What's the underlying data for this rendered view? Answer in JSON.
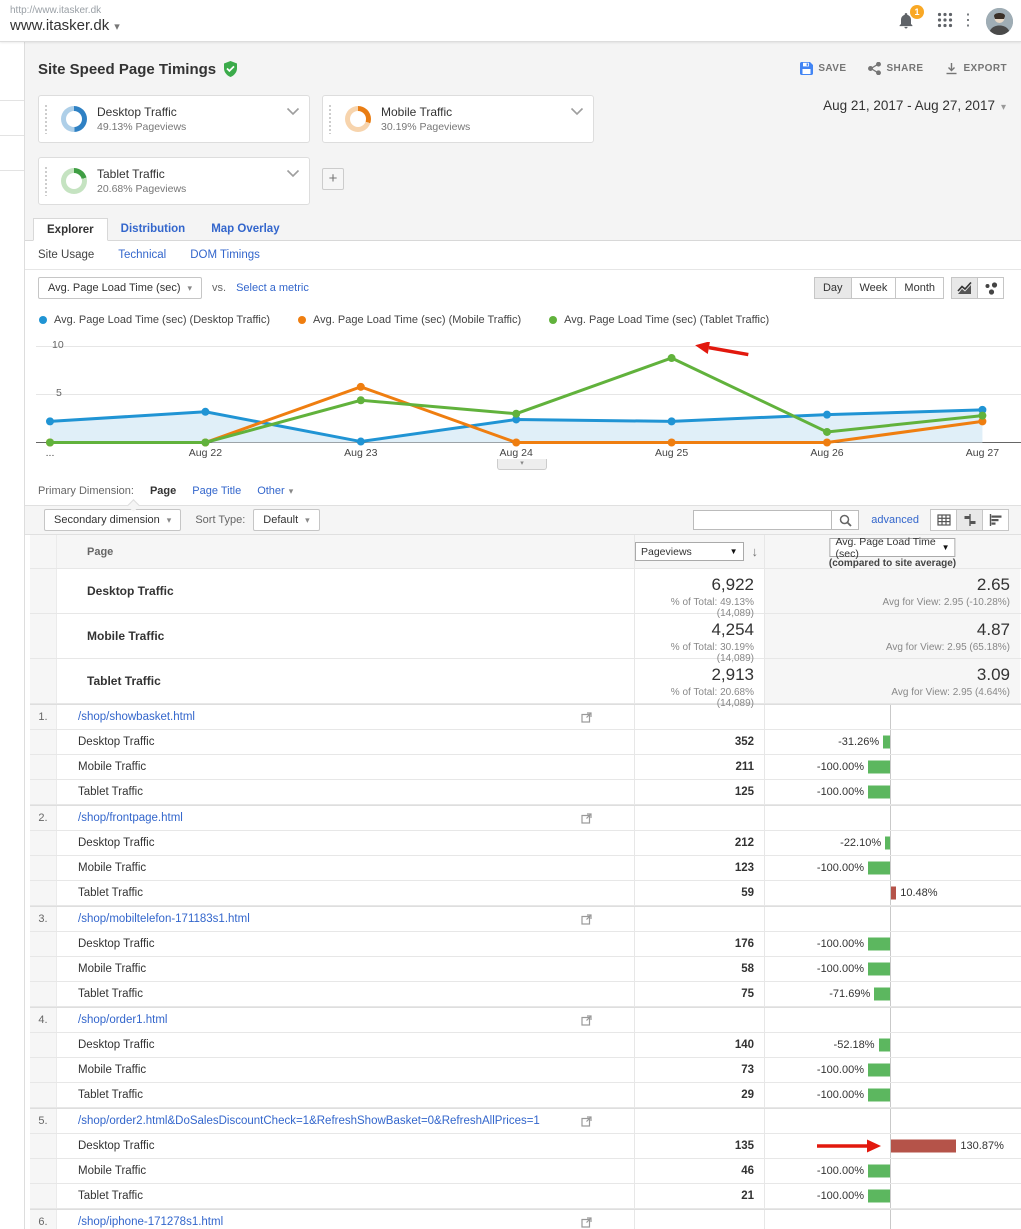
{
  "topbar": {
    "property_url": "http://www.itasker.dk",
    "property_name": "www.itasker.dk",
    "notification_count": "1"
  },
  "header": {
    "title": "Site Speed Page Timings",
    "save_label": "SAVE",
    "share_label": "SHARE",
    "export_label": "EXPORT",
    "date_range": "Aug 21, 2017 - Aug 27, 2017",
    "add_segment_label": "+"
  },
  "segments": [
    {
      "title": "Desktop Traffic",
      "subtitle": "49.13% Pageviews",
      "pct": 49.13,
      "color": "#2f81c4",
      "track": "#aecfe8"
    },
    {
      "title": "Mobile Traffic",
      "subtitle": "30.19% Pageviews",
      "pct": 30.19,
      "color": "#e97d13",
      "track": "#f7d4ad"
    },
    {
      "title": "Tablet Traffic",
      "subtitle": "20.68% Pageviews",
      "pct": 20.68,
      "color": "#3f9e43",
      "track": "#c5e3c1"
    }
  ],
  "tabs": {
    "main": [
      "Explorer",
      "Distribution",
      "Map Overlay"
    ],
    "active_main": "Explorer",
    "sub": [
      "Site Usage",
      "Technical",
      "DOM Timings"
    ],
    "active_sub": "Site Usage"
  },
  "metric_bar": {
    "metric_dropdown": "Avg. Page Load Time (sec)",
    "vs_label": "vs.",
    "select_metric": "Select a metric",
    "granularity": [
      "Day",
      "Week",
      "Month"
    ],
    "active_granularity": "Day"
  },
  "chart_data": {
    "type": "line",
    "x": [
      "Aug 21",
      "Aug 22",
      "Aug 23",
      "Aug 24",
      "Aug 25",
      "Aug 26",
      "Aug 27"
    ],
    "x_tick_labels": [
      "...",
      "Aug 22",
      "Aug 23",
      "Aug 24",
      "Aug 25",
      "Aug 26",
      "Aug 27"
    ],
    "ylim": [
      0,
      10
    ],
    "y_ticks": [
      10,
      5
    ],
    "grid": true,
    "legend_position": "top",
    "series": [
      {
        "name": "Avg. Page Load Time (sec) (Desktop Traffic)",
        "color": "#2094d4",
        "area": true,
        "area_color": "#ddedf7",
        "values": [
          2.2,
          3.2,
          0.1,
          2.4,
          2.2,
          2.9,
          3.4
        ]
      },
      {
        "name": "Avg. Page Load Time (sec) (Mobile Traffic)",
        "color": "#ef7e10",
        "values": [
          0,
          0,
          5.8,
          0,
          0,
          0,
          2.2
        ]
      },
      {
        "name": "Avg. Page Load Time (sec) (Tablet Traffic)",
        "color": "#61b23c",
        "values": [
          0,
          0,
          4.4,
          3.0,
          8.8,
          1.1,
          2.8
        ]
      }
    ],
    "annotation": "red arrow pointing at Tablet Traffic peak on Aug 25"
  },
  "primary_dimension": {
    "label": "Primary Dimension:",
    "options": [
      "Page",
      "Page Title",
      "Other"
    ],
    "active": "Page"
  },
  "toolbar": {
    "secondary_dimension": "Secondary dimension",
    "sort_type_label": "Sort Type:",
    "sort_type_value": "Default",
    "search_placeholder": "",
    "advanced_label": "advanced"
  },
  "table": {
    "col_page": "Page",
    "col_pageviews": "Pageviews",
    "col_metric": "Avg. Page Load Time (sec)",
    "col_metric_note": "(compared to site average)",
    "summary": [
      {
        "name": "Desktop Traffic",
        "pageviews": "6,922",
        "pageviews_note": "% of Total: 49.13% (14,089)",
        "avg": "2.65",
        "avg_note": "Avg for View: 2.95 (-10.28%)"
      },
      {
        "name": "Mobile Traffic",
        "pageviews": "4,254",
        "pageviews_note": "% of Total: 30.19% (14,089)",
        "avg": "4.87",
        "avg_note": "Avg for View: 2.95 (65.18%)"
      },
      {
        "name": "Tablet Traffic",
        "pageviews": "2,913",
        "pageviews_note": "% of Total: 20.68% (14,089)",
        "avg": "3.09",
        "avg_note": "Avg for View: 2.95 (4.64%)"
      }
    ],
    "rows": [
      {
        "num": "1.",
        "page": "/shop/showbasket.html",
        "metrics": [
          {
            "label": "Desktop Traffic",
            "pageviews": "352",
            "pct": -31.26,
            "pct_label": "-31.26%"
          },
          {
            "label": "Mobile Traffic",
            "pageviews": "211",
            "pct": -100.0,
            "pct_label": "-100.00%"
          },
          {
            "label": "Tablet Traffic",
            "pageviews": "125",
            "pct": -100.0,
            "pct_label": "-100.00%"
          }
        ]
      },
      {
        "num": "2.",
        "page": "/shop/frontpage.html",
        "metrics": [
          {
            "label": "Desktop Traffic",
            "pageviews": "212",
            "pct": -22.1,
            "pct_label": "-22.10%"
          },
          {
            "label": "Mobile Traffic",
            "pageviews": "123",
            "pct": -100.0,
            "pct_label": "-100.00%"
          },
          {
            "label": "Tablet Traffic",
            "pageviews": "59",
            "pct": 10.48,
            "pct_label": "10.48%"
          }
        ]
      },
      {
        "num": "3.",
        "page": "/shop/mobiltelefon-171183s1.html",
        "metrics": [
          {
            "label": "Desktop Traffic",
            "pageviews": "176",
            "pct": -100.0,
            "pct_label": "-100.00%"
          },
          {
            "label": "Mobile Traffic",
            "pageviews": "58",
            "pct": -100.0,
            "pct_label": "-100.00%"
          },
          {
            "label": "Tablet Traffic",
            "pageviews": "75",
            "pct": -71.69,
            "pct_label": "-71.69%"
          }
        ]
      },
      {
        "num": "4.",
        "page": "/shop/order1.html",
        "metrics": [
          {
            "label": "Desktop Traffic",
            "pageviews": "140",
            "pct": -52.18,
            "pct_label": "-52.18%"
          },
          {
            "label": "Mobile Traffic",
            "pageviews": "73",
            "pct": -100.0,
            "pct_label": "-100.00%"
          },
          {
            "label": "Tablet Traffic",
            "pageviews": "29",
            "pct": -100.0,
            "pct_label": "-100.00%"
          }
        ]
      },
      {
        "num": "5.",
        "page": "/shop/order2.html&DoSalesDiscountCheck=1&RefreshShowBasket=0&RefreshAllPrices=1",
        "metrics": [
          {
            "label": "Desktop Traffic",
            "pageviews": "135",
            "pct": 130.87,
            "pct_label": "130.87%",
            "arrow": true
          },
          {
            "label": "Mobile Traffic",
            "pageviews": "46",
            "pct": -100.0,
            "pct_label": "-100.00%"
          },
          {
            "label": "Tablet Traffic",
            "pageviews": "21",
            "pct": -100.0,
            "pct_label": "-100.00%"
          }
        ]
      },
      {
        "num": "6.",
        "page": "/shop/iphone-171278s1.html",
        "metrics": []
      }
    ]
  },
  "icons": {
    "caret_down": "▾",
    "select_caret": "▼",
    "sort_desc": "↓",
    "kebab": "⋮"
  },
  "colors": {
    "bar_negative": "#5cb75f",
    "bar_positive": "#b55349",
    "annotation_arrow": "#e2180d",
    "badge": "#f9a825",
    "link": "#3366cc"
  }
}
